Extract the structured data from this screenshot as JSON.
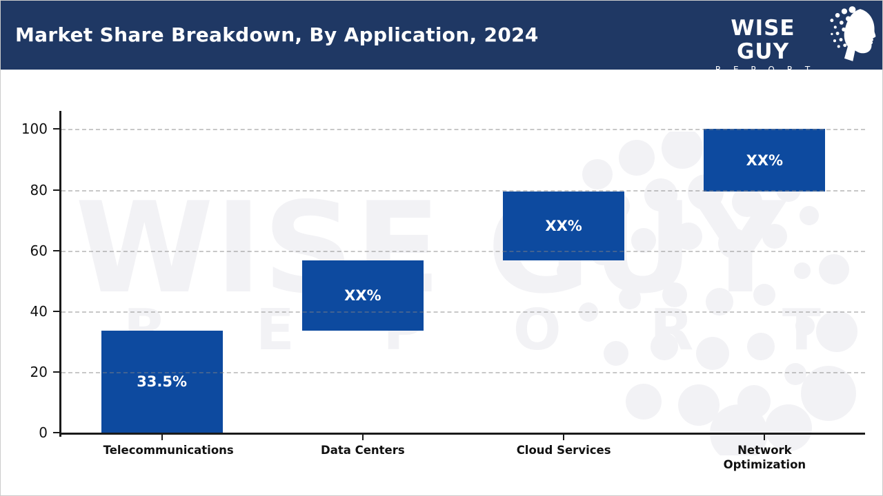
{
  "header": {
    "title": "Market Share Breakdown, By Application, 2024",
    "background_color": "#1f3864",
    "logo": {
      "line1": "WISE GUY",
      "line2": "R E P O R T S"
    }
  },
  "watermark": {
    "line1": "WISE GUY",
    "line2": "R E P O R T S"
  },
  "chart_data": {
    "type": "bar",
    "subtype": "waterfall",
    "title": "Market Share Breakdown, By Application, 2024",
    "categories": [
      "Telecommunications",
      "Data Centers",
      "Cloud Services",
      "Network Optimization"
    ],
    "segments": [
      {
        "category": "Telecommunications",
        "start": 0,
        "end": 33.5,
        "label": "33.5%"
      },
      {
        "category": "Data Centers",
        "start": 33.5,
        "end": 56.7,
        "label": "XX%"
      },
      {
        "category": "Cloud Services",
        "start": 56.7,
        "end": 79.5,
        "label": "XX%"
      },
      {
        "category": "Network Optimization",
        "start": 79.5,
        "end": 100,
        "label": "XX%"
      }
    ],
    "xlabel": "",
    "ylabel": "",
    "ylim": [
      0,
      106
    ],
    "yticks": [
      0,
      20,
      40,
      60,
      80,
      100
    ],
    "grid": "horizontal-dashed",
    "legend_position": "none",
    "bar_color": "#0d4a9f",
    "bar_label_color": "#ffffff",
    "axis_color": "#1a1a1a"
  }
}
